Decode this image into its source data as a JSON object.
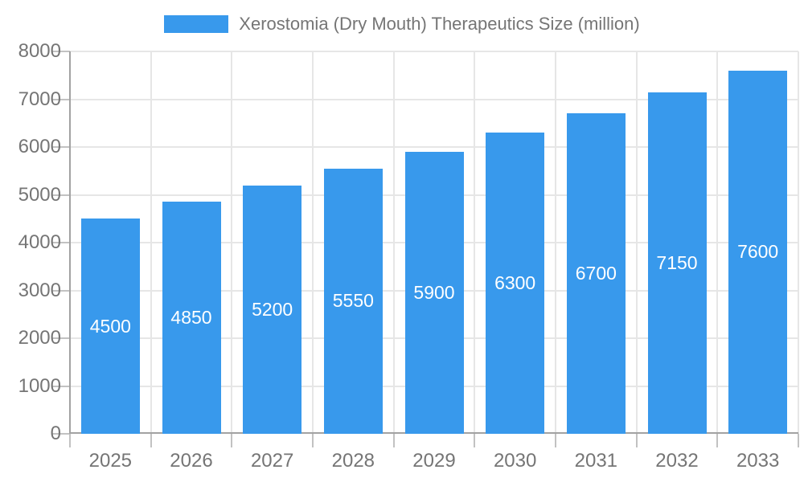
{
  "legend": {
    "label": "Xerostomia (Dry Mouth) Therapeutics Size (million)"
  },
  "chart_data": {
    "type": "bar",
    "title": "Xerostomia (Dry Mouth) Therapeutics Size (million)",
    "categories": [
      "2025",
      "2026",
      "2027",
      "2028",
      "2029",
      "2030",
      "2031",
      "2032",
      "2033"
    ],
    "values": [
      4500,
      4850,
      5200,
      5550,
      5900,
      6300,
      6700,
      7150,
      7600
    ],
    "bar_value_labels": [
      "4500",
      "4850",
      "5200",
      "5550",
      "5900",
      "6300",
      "6700",
      "7150",
      "7600"
    ],
    "xlabel": "",
    "ylabel": "",
    "ylim": [
      0,
      8000
    ],
    "ytick_interval": 1000,
    "y_tick_labels": [
      "0",
      "1000",
      "2000",
      "3000",
      "4000",
      "5000",
      "6000",
      "7000",
      "8000"
    ],
    "legend_position": "top",
    "grid": true,
    "colors": {
      "bar": "#3899ec",
      "axis": "#a2a2a2",
      "grid": "#e6e6e6",
      "tick": "#c2c2c2",
      "label_text": "#757575",
      "bar_label": "#ffffff",
      "background": "#ffffff"
    }
  }
}
